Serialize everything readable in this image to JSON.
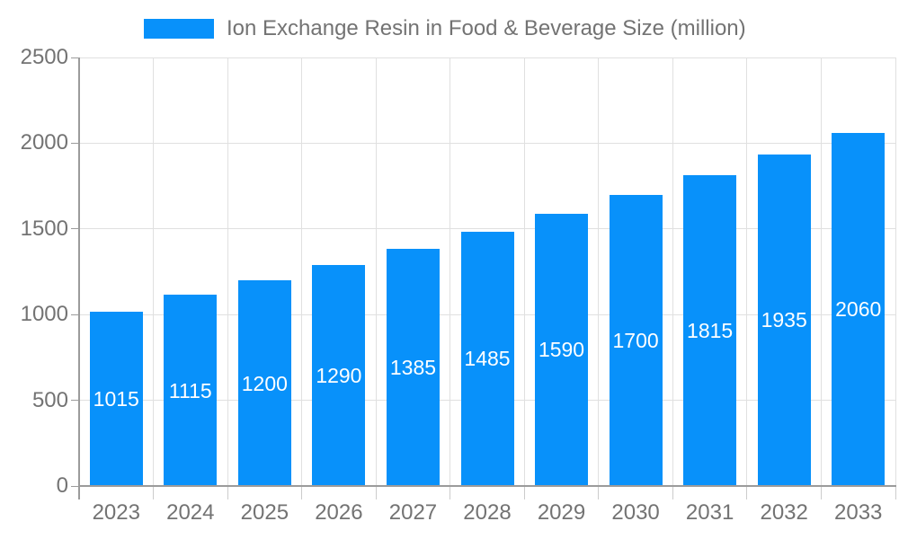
{
  "legend": {
    "position": "top"
  },
  "colors": {
    "bar": "#0891FA",
    "grid": "#E0E0E0",
    "axis": "#9B9B9B",
    "x_tick": "#CCCCCC",
    "text": "#737373",
    "bar_label": "#FFFFFF",
    "background": "#FFFFFF"
  },
  "chart_data": {
    "type": "bar",
    "title": "Ion Exchange Resin in Food & Beverage Size (million)",
    "categories": [
      "2023",
      "2024",
      "2025",
      "2026",
      "2027",
      "2028",
      "2029",
      "2030",
      "2031",
      "2032",
      "2033"
    ],
    "series": [
      {
        "name": "Ion Exchange Resin in Food & Beverage Size (million)",
        "values": [
          1015,
          1115,
          1200,
          1290,
          1385,
          1485,
          1590,
          1700,
          1815,
          1935,
          2060
        ]
      }
    ],
    "xlabel": "",
    "ylabel": "",
    "ylim": [
      0,
      2500
    ],
    "yticks": [
      0,
      500,
      1000,
      1500,
      2000,
      2500
    ],
    "grid": true,
    "legend_position": "top",
    "bar_label_position": "inside-center"
  }
}
